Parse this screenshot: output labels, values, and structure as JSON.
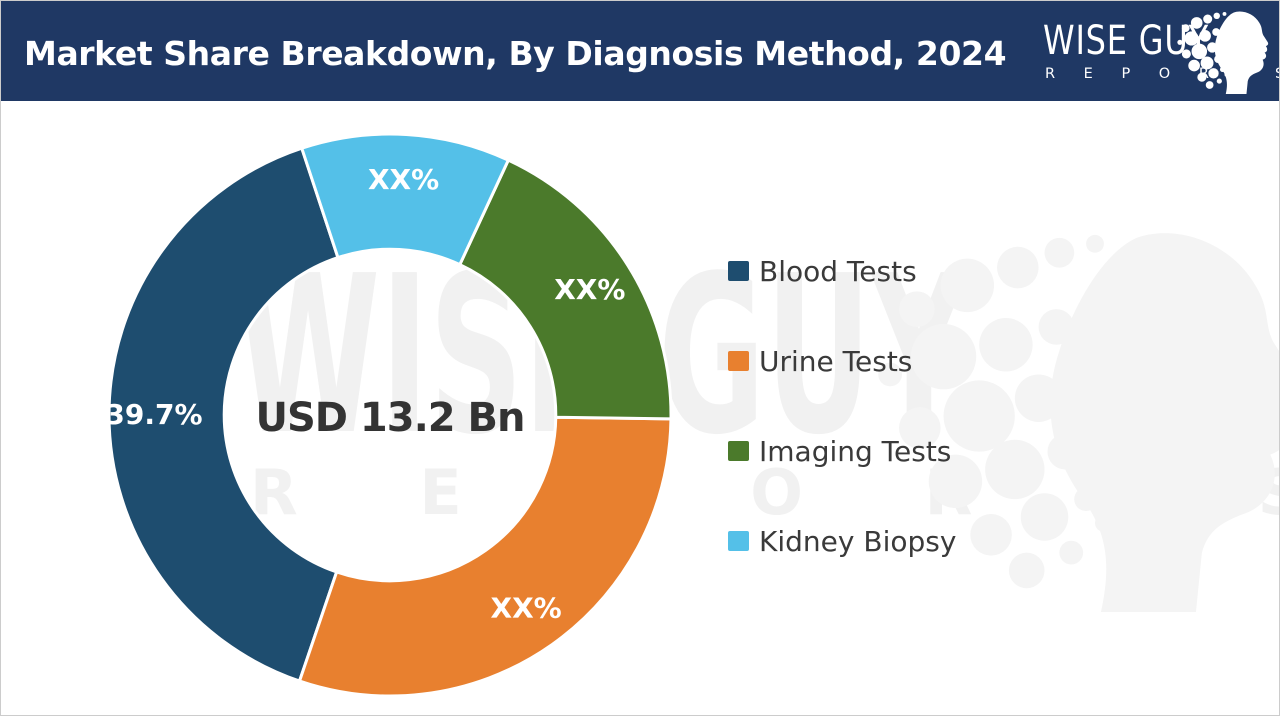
{
  "header": {
    "title": "Market Share Breakdown, By Diagnosis Method, 2024",
    "logo": {
      "name_line": "WISE GUY",
      "reports_line": "R E P O R T S"
    }
  },
  "chart_data": {
    "type": "donut",
    "title": "Market Share Breakdown, By Diagnosis Method, 2024",
    "center_label": "USD 13.2 Bn",
    "categories": [
      "Blood Tests",
      "Urine Tests",
      "Imaging Tests",
      "Kidney Biopsy"
    ],
    "values": [
      39.7,
      30.0,
      18.3,
      12.0
    ],
    "slice_labels": [
      "39.7%",
      "XX%",
      "XX%",
      "XX%"
    ],
    "colors": [
      "#1e4d6f",
      "#e8802f",
      "#4b7a2b",
      "#54c0e8"
    ],
    "start_angle_deg": 108.3,
    "direction": "counterclockwise",
    "inner_radius_ratio": 0.59,
    "label_radius_ratio": 0.84,
    "legend_position": "right",
    "gridlines": false
  },
  "watermark": {
    "line1": "WISE GUY",
    "line2": "R E P O R T S"
  },
  "theme": {
    "header_bg": "#1f3864",
    "label_white": "#ffffff",
    "text_dark": "#3a3a3a",
    "center_text": "#333333",
    "watermark_gray": "#f1f1f1",
    "watermark_face_gray": "#f4f4f4",
    "border_gray": "#cccccc",
    "gap_stroke": "#ffffff"
  }
}
